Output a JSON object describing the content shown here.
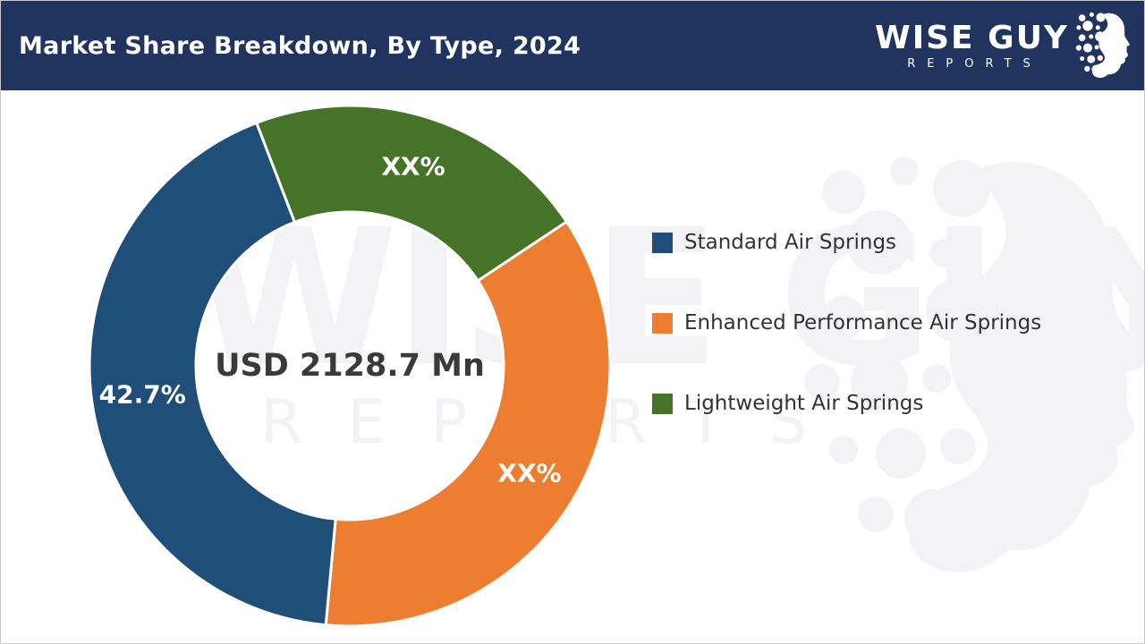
{
  "header": {
    "title": "Market Share Breakdown, By Type, 2024",
    "bg_color": "#21345F",
    "logo": {
      "line1": "WISE GUY",
      "line2": "REPORTS"
    }
  },
  "watermark": {
    "line1": "WISE GUY",
    "line2": "REPORTS"
  },
  "chart_data": {
    "type": "donut",
    "title": "Market Share Breakdown, By Type, 2024",
    "center_label": "USD 2128.7 Mn",
    "start_angle_deg_cw_from_top": -21,
    "slices": [
      {
        "label": "Lightweight Air Springs",
        "display_pct": "XX%",
        "pct": 21.5,
        "color": "#457327"
      },
      {
        "label": "Enhanced Performance Air Springs",
        "display_pct": "XX%",
        "pct": 35.8,
        "color": "#ED7D31"
      },
      {
        "label": "Standard Air Springs",
        "display_pct": "42.7%",
        "pct": 42.7,
        "color": "#1F4E79"
      }
    ],
    "legend_position": "right",
    "legend": [
      {
        "label": "Standard Air Springs",
        "color": "#1F4E79"
      },
      {
        "label": "Enhanced Performance Air Springs",
        "color": "#ED7D31"
      },
      {
        "label": "Lightweight Air Springs",
        "color": "#457327"
      }
    ]
  }
}
